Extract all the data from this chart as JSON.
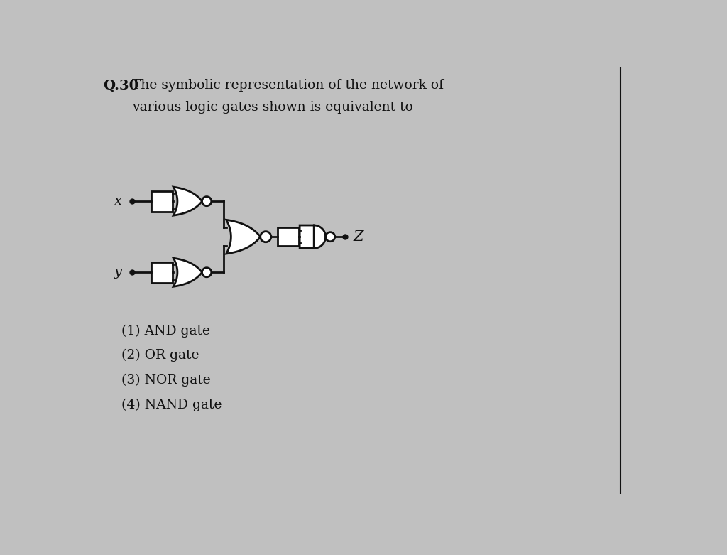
{
  "bg_color": "#c0c0c0",
  "line_color": "#111111",
  "options": [
    "(1) AND gate",
    "(2) OR gate",
    "(3) NOR gate",
    "(4) NAND gate"
  ],
  "fig_width": 10.24,
  "fig_height": 7.81,
  "q_label": "Q.30",
  "q_text1": "The symbolic representation of the network of",
  "q_text2": "various logic gates shown is equivalent to"
}
